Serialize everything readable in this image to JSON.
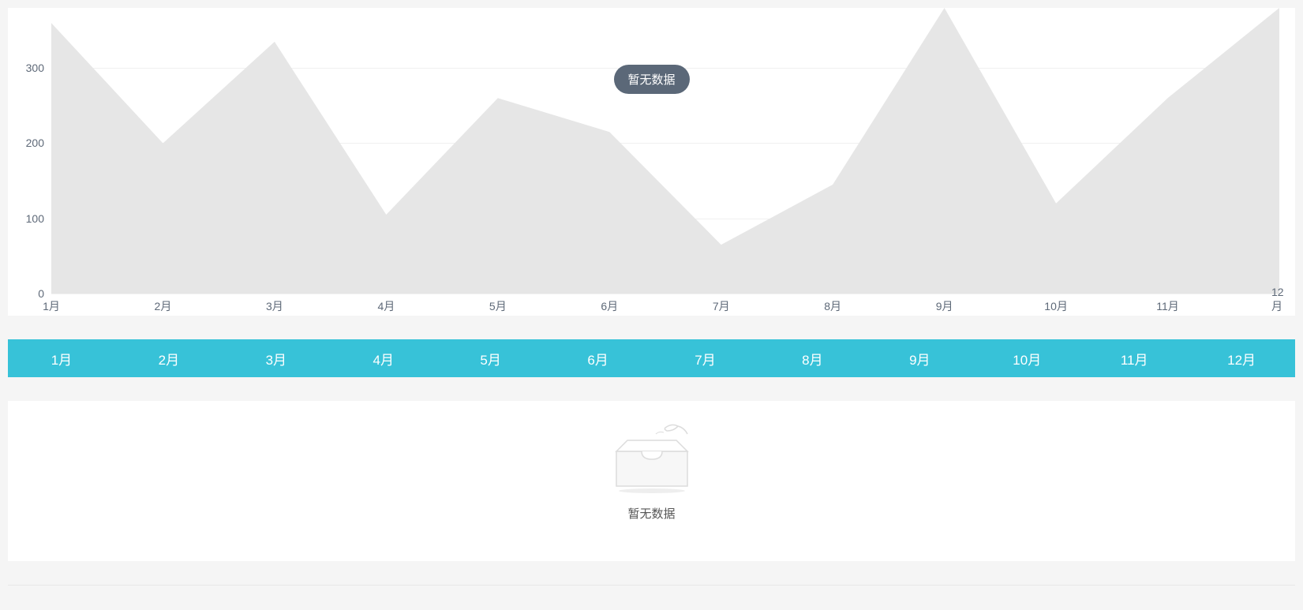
{
  "chart": {
    "type": "area",
    "tooltip_text": "暂无数据",
    "tooltip_bg": "#5b6878",
    "tooltip_text_color": "#ffffff",
    "area_fill": "#e6e6e6",
    "gridline_color": "#f0f0f0",
    "background_color": "#ffffff",
    "axis_label_color": "#5e6978",
    "axis_label_fontsize": 14,
    "y_axis": {
      "ticks": [
        0,
        100,
        200,
        300
      ],
      "min": 0,
      "max": 380
    },
    "x_axis": {
      "labels": [
        "1月",
        "2月",
        "3月",
        "4月",
        "5月",
        "6月",
        "7月",
        "8月",
        "9月",
        "10月",
        "11月",
        "12月"
      ]
    },
    "series": {
      "values": [
        360,
        200,
        335,
        105,
        260,
        215,
        65,
        145,
        380,
        120,
        260,
        380
      ]
    }
  },
  "month_tabs": {
    "bg_color": "#37c2d8",
    "text_color": "#ffffff",
    "fontsize": 17,
    "items": [
      "1月",
      "2月",
      "3月",
      "4月",
      "5月",
      "6月",
      "7月",
      "8月",
      "9月",
      "10月",
      "11月",
      "12月"
    ]
  },
  "empty_state": {
    "text": "暂无数据",
    "text_color": "#555555",
    "icon_stroke": "#dcdcdc",
    "icon_fill": "#f7f7f7"
  },
  "page_bg": "#f5f5f5"
}
